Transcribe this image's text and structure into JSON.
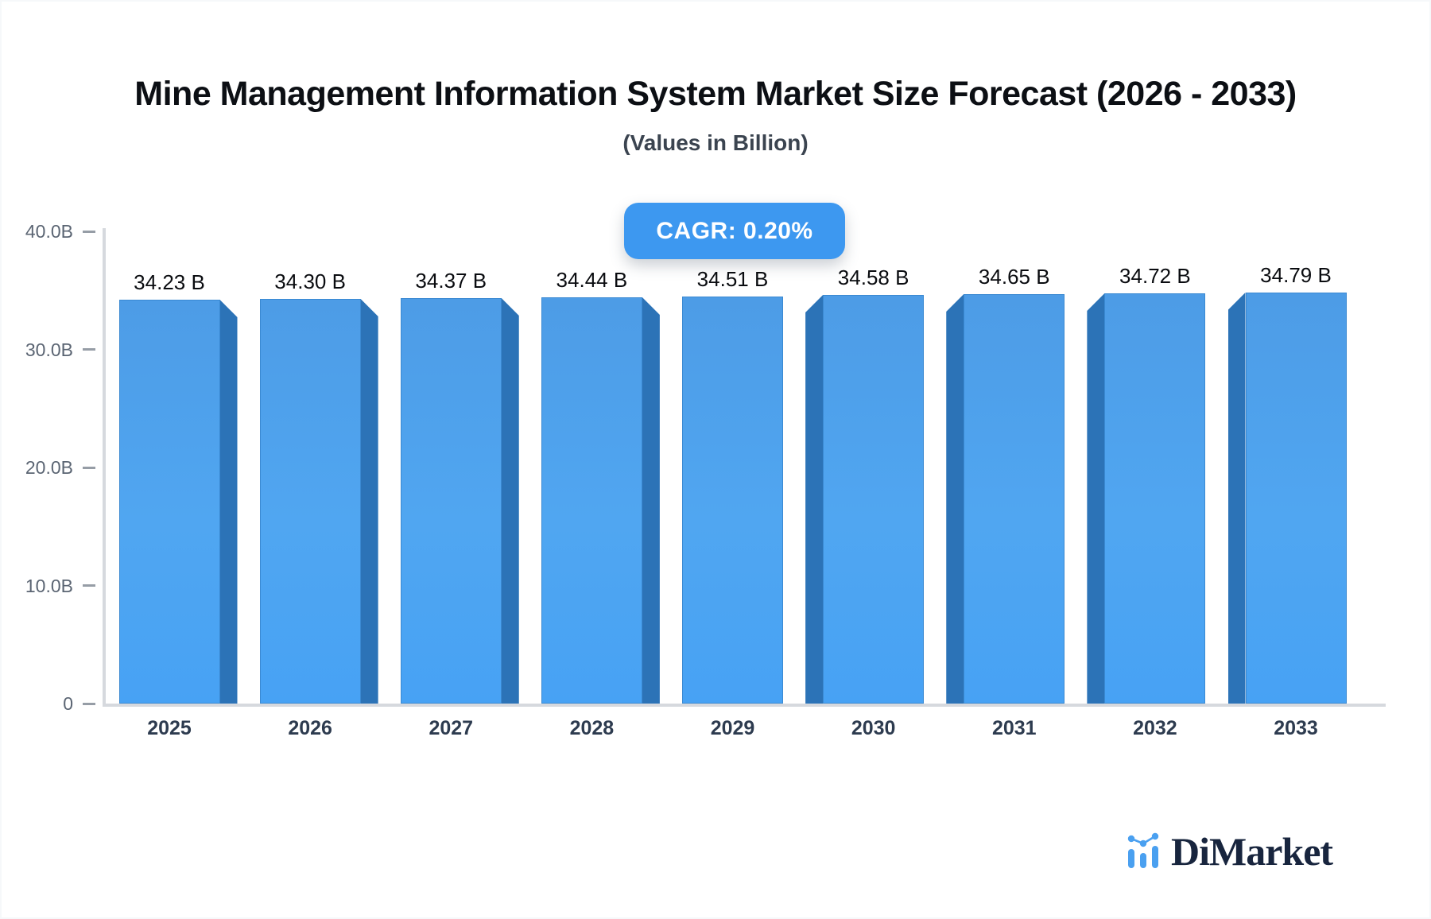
{
  "header": {
    "title": "Mine Management Information System Market Size Forecast (2026 - 2033)",
    "subtitle": "(Values in Billion)"
  },
  "cagr_badge": {
    "label": "CAGR: 0.20%"
  },
  "chart_data": {
    "type": "bar",
    "title": "Mine Management Information System Market Size Forecast (2026 - 2033)",
    "subtitle": "(Values in Billion)",
    "categories": [
      "2025",
      "2026",
      "2027",
      "2028",
      "2029",
      "2030",
      "2031",
      "2032",
      "2033"
    ],
    "values": [
      34.23,
      34.3,
      34.37,
      34.44,
      34.51,
      34.58,
      34.65,
      34.72,
      34.79
    ],
    "value_labels": [
      "34.23 B",
      "34.30 B",
      "34.37 B",
      "34.44 B",
      "34.51 B",
      "34.58 B",
      "34.65 B",
      "34.72 B",
      "34.79 B"
    ],
    "xlabel": "",
    "ylabel": "",
    "ylim": [
      0,
      40
    ],
    "y_ticks": [
      40,
      30,
      20,
      10,
      0
    ],
    "y_tick_labels": [
      "40.0B",
      "30.0B",
      "20.0B",
      "10.0B",
      "0"
    ],
    "grid": false,
    "legend": false,
    "annotation": "CAGR: 0.20%",
    "style": "3d-extruded-bars"
  },
  "branding": {
    "name": "DiMarket",
    "icon": "bar-chart-logo-icon"
  },
  "colors": {
    "bar_face": "#4FA2EF",
    "bar_side": "#2C73B7",
    "badge_bg": "#3D98F0",
    "badge_text": "#FFFFFF",
    "axis": "#D6D9DE",
    "title_text": "#0C0F14",
    "subtitle_text": "#3B4450",
    "x_label_text": "#2D3B4F",
    "y_label_text": "#5B6573",
    "logo_text": "#18253E",
    "logo_icon": "#4AA0F0"
  }
}
